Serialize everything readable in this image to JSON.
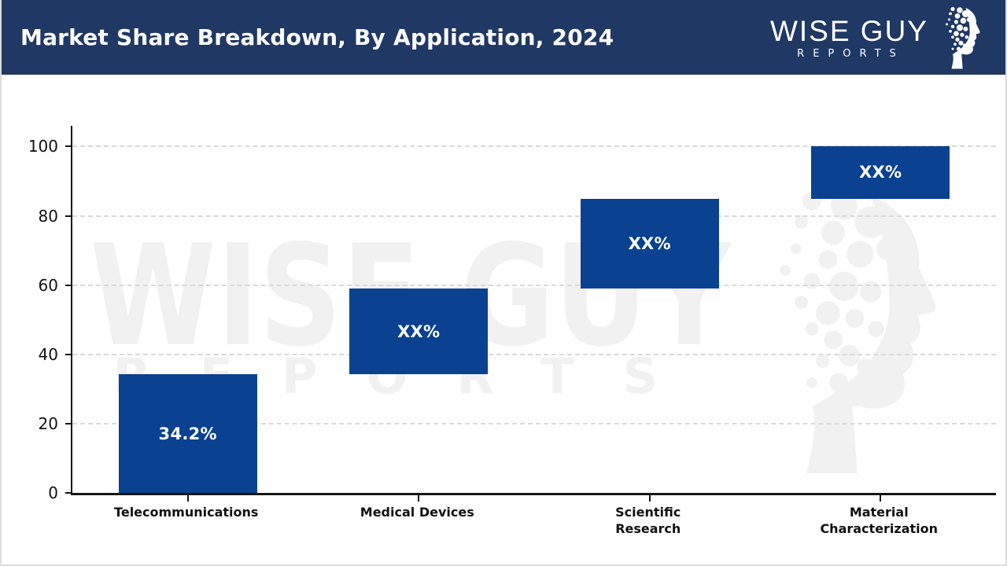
{
  "header": {
    "title": "Market Share Breakdown, By Application, 2024",
    "logo": {
      "name": "Wise Guy Reports",
      "line1": "WISE GUY",
      "line2": "REPORTS"
    }
  },
  "watermark": {
    "line1": "WISE GUY",
    "line2": "REPORTS"
  },
  "chart_data": {
    "type": "bar",
    "subtype": "waterfall",
    "title": "Market Share Breakdown, By Application, 2024",
    "categories": [
      "Telecommunications",
      "Medical Devices",
      "Scientific\nResearch",
      "Material\nCharacterization"
    ],
    "bars": [
      {
        "category": "Telecommunications",
        "start": 0,
        "end": 34.2,
        "value_label": "34.2%"
      },
      {
        "category": "Medical Devices",
        "start": 34.2,
        "end": 59,
        "value_label": "XX%"
      },
      {
        "category": "Scientific Research",
        "start": 59,
        "end": 85,
        "value_label": "XX%"
      },
      {
        "category": "Material Characterization",
        "start": 85,
        "end": 100,
        "value_label": "XX%"
      }
    ],
    "y_ticks": [
      0,
      20,
      40,
      60,
      80,
      100
    ],
    "ylim": [
      0,
      106
    ],
    "grid": true,
    "legend": false,
    "xlabel": "",
    "ylabel": "",
    "bar_color": "#0a4191",
    "value_label_color": "#ffffff"
  },
  "colors": {
    "header_bg": "#1f3864",
    "bar": "#0a4191",
    "axis": "#161616",
    "gridline": "#d9d9d9",
    "watermark": "#f1f1f1",
    "page_border": "#dcdcdc"
  }
}
